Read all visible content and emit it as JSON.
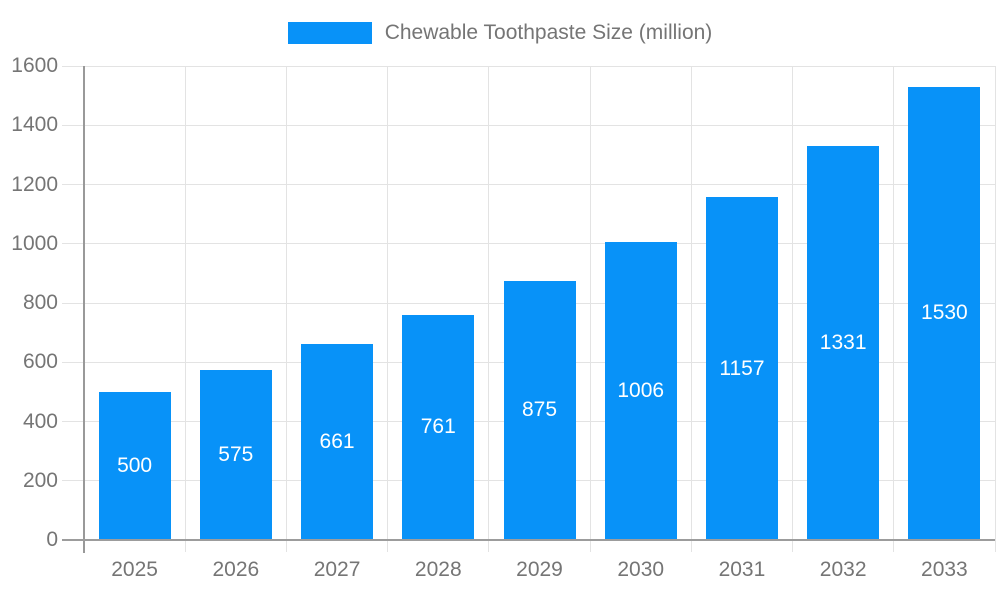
{
  "legend": {
    "label": "Chewable Toothpaste Size (million)",
    "swatch_color": "#0892f8"
  },
  "chart_data": {
    "type": "bar",
    "title": "Chewable Toothpaste Size (million)",
    "categories": [
      "2025",
      "2026",
      "2027",
      "2028",
      "2029",
      "2030",
      "2031",
      "2032",
      "2033"
    ],
    "values": [
      500,
      575,
      661,
      761,
      875,
      1006,
      1157,
      1331,
      1530
    ],
    "xlabel": "",
    "ylabel": "",
    "ylim": [
      0,
      1600
    ],
    "ytick_step": 200,
    "ytick_labels": [
      "0",
      "200",
      "400",
      "600",
      "800",
      "1000",
      "1200",
      "1400",
      "1600"
    ],
    "grid": true,
    "legend_position": "top",
    "bar_color": "#0892f8",
    "bar_label_color": "#ffffff",
    "axis_color": "#999999",
    "grid_color": "#e3e3e3",
    "tick_text_color": "#757575"
  }
}
